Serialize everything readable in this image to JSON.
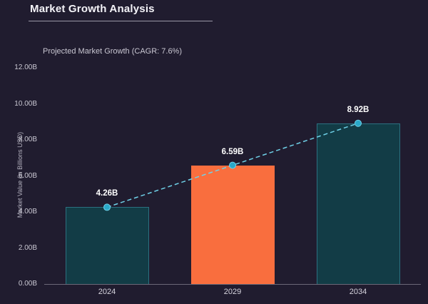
{
  "header": {
    "title": "Market Growth Analysis"
  },
  "chart_data": {
    "type": "bar",
    "title": "Projected Market Growth (CAGR: 7.6%)",
    "categories": [
      "2024",
      "2029",
      "2034"
    ],
    "values": [
      4.26,
      6.59,
      8.92
    ],
    "value_labels": [
      "4.26B",
      "6.59B",
      "8.92B"
    ],
    "xlabel": "",
    "ylabel": "Market Value (in Billions USD)",
    "ylim": [
      0,
      12
    ],
    "ytick_values": [
      0,
      2,
      4,
      6,
      8,
      10,
      12
    ],
    "ytick_labels": [
      "0.00B",
      "2.00B",
      "4.00B",
      "6.00B",
      "8.00B",
      "10.00B",
      "12.00B"
    ],
    "grid": false,
    "legend_position": "none",
    "overlay": "dashed trend line with circular markers at bar tops",
    "colors": {
      "background": "#201c2f",
      "bar_fills": [
        "#123c46",
        "#f96e3e",
        "#123c46"
      ],
      "bar_borders": [
        "#2c7080",
        "#f96e3e",
        "#2c7080"
      ],
      "trend_line": "#6fd1e8",
      "marker": "#2aa8c8",
      "value_label": "#ffffff",
      "tick_text": "#c9c7d2"
    }
  }
}
